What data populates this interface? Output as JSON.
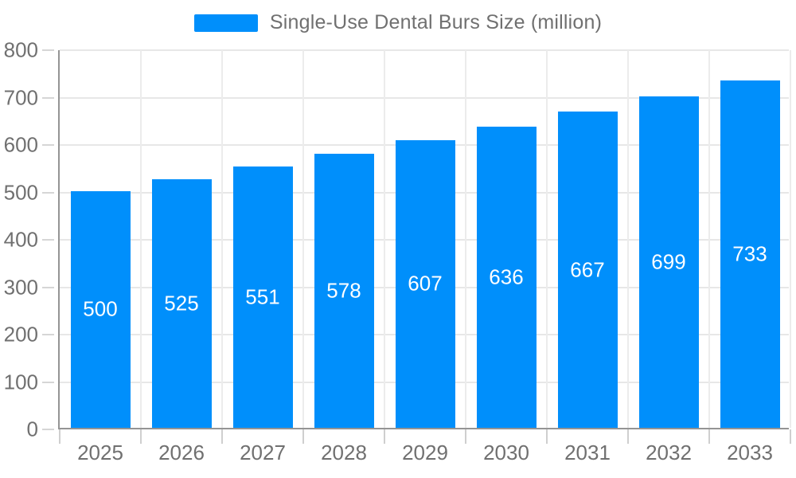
{
  "legend": {
    "label": "Single-Use Dental Burs Size (million)"
  },
  "chart_data": {
    "type": "bar",
    "title": "Single-Use Dental Burs Size (million)",
    "series": [
      {
        "name": "Single-Use Dental Burs Size (million)",
        "values": [
          500,
          525,
          551,
          578,
          607,
          636,
          667,
          699,
          733
        ]
      }
    ],
    "categories": [
      "2025",
      "2026",
      "2027",
      "2028",
      "2029",
      "2030",
      "2031",
      "2032",
      "2033"
    ],
    "xlabel": "",
    "ylabel": "",
    "ylim": [
      0,
      800
    ],
    "yticks": [
      0,
      100,
      200,
      300,
      400,
      500,
      600,
      700,
      800
    ],
    "grid": true,
    "legend_position": "top",
    "bar_labels_visible": true
  },
  "colors": {
    "bar": "#008FFB",
    "bar_label_text": "#ffffff",
    "axis_text": "#707070",
    "axis_line": "#949494",
    "gridline": "#e7e7e7"
  }
}
